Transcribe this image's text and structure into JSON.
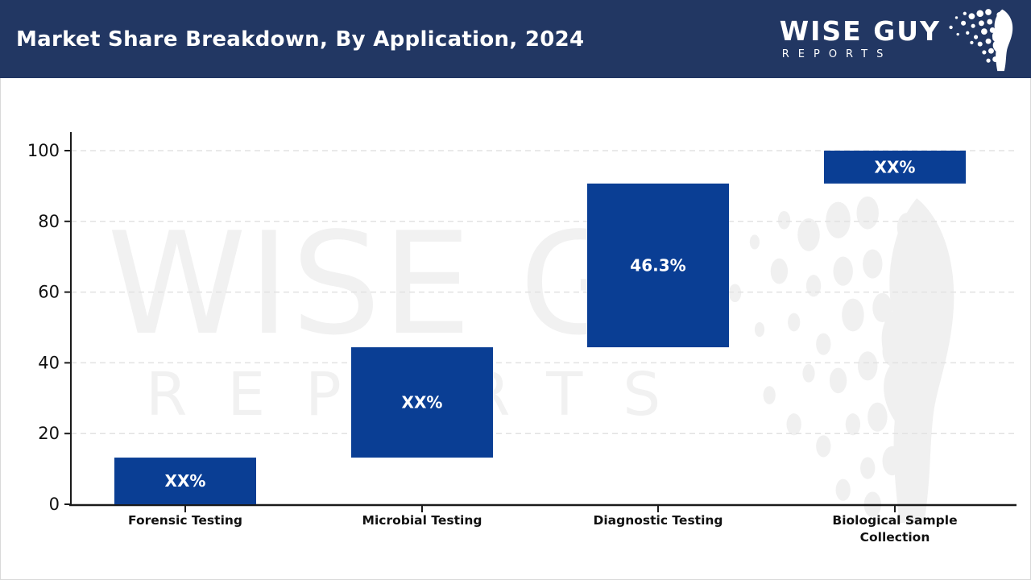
{
  "header": {
    "title": "Market Share Breakdown, By Application, 2024",
    "logo": {
      "line1": "WISE GUY",
      "line2": "REPORTS"
    }
  },
  "watermark": {
    "line1": "WISE GU",
    "line2": "REPORTS"
  },
  "colors": {
    "header_bg": "#223763",
    "bar": "#0a3e94",
    "grid": "#e2e2e2",
    "axis": "#1a1a1a",
    "tick_label": "#111111",
    "category_label": "#111111",
    "bar_label": "#ffffff",
    "watermark": "#f1f1f1"
  },
  "chart_data": {
    "type": "bar",
    "subtype": "waterfall",
    "title": "Market Share Breakdown, By Application, 2024",
    "categories": [
      "Forensic Testing",
      "Microbial Testing",
      "Diagnostic Testing",
      "Biological Sample Collection"
    ],
    "segments": [
      {
        "category": "Forensic Testing",
        "start": 0,
        "end": 13.2,
        "value": 13.2,
        "label": "XX%"
      },
      {
        "category": "Microbial Testing",
        "start": 13.2,
        "end": 44.4,
        "value": 31.2,
        "label": "XX%"
      },
      {
        "category": "Diagnostic Testing",
        "start": 44.4,
        "end": 90.7,
        "value": 46.3,
        "label": "46.3%"
      },
      {
        "category": "Biological Sample Collection",
        "start": 90.7,
        "end": 100,
        "value": 9.3,
        "label": "XX%"
      }
    ],
    "xlabel": "",
    "ylabel": "",
    "ylim": [
      0,
      100
    ],
    "yticks": [
      0,
      20,
      40,
      60,
      80,
      100
    ],
    "grid": "horizontal-dashed",
    "legend": "none",
    "bar_color": "#0a3e94"
  }
}
